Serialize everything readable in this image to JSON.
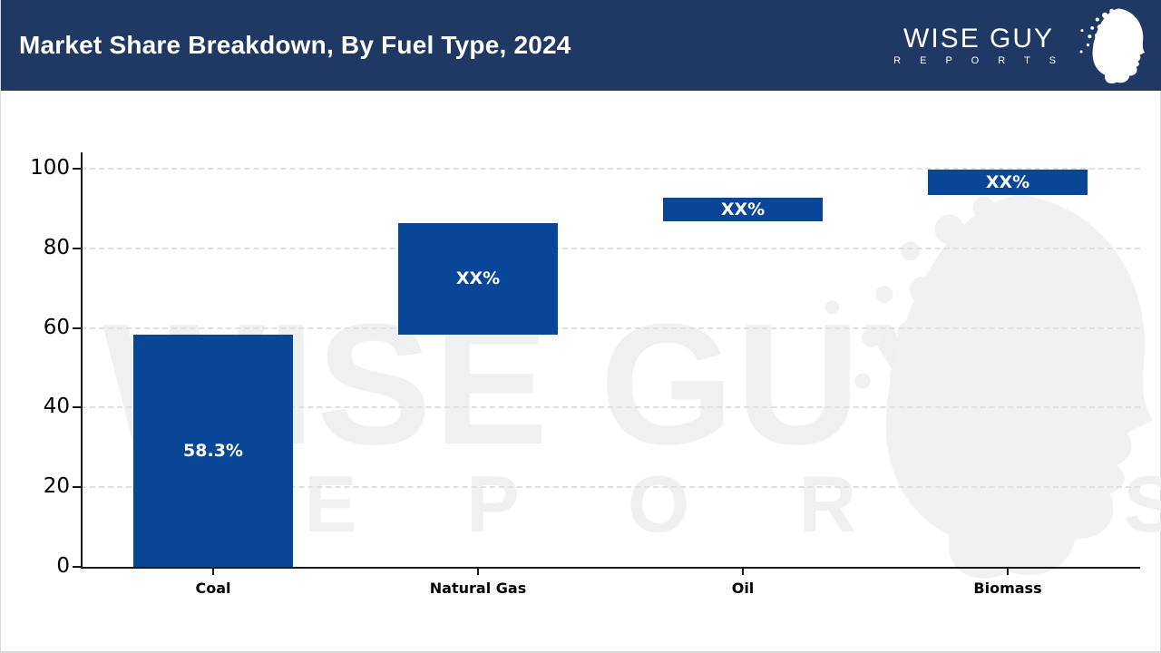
{
  "header": {
    "title": "Market Share Breakdown, By Fuel Type, 2024",
    "bg_color": "#1f3864",
    "logo": {
      "line1": "WISE GUY",
      "line2": "R E P O R T S"
    }
  },
  "watermark": {
    "line1": "WISE GUY",
    "line2": "R E P O R T S"
  },
  "chart_data": {
    "type": "bar",
    "subtype": "floating-segment-waterfall",
    "title": "Market Share Breakdown, By Fuel Type, 2024",
    "categories": [
      "Coal",
      "Natural Gas",
      "Oil",
      "Biomass"
    ],
    "segments": [
      {
        "category": "Coal",
        "start": 0,
        "end": 58.3,
        "size": 58.3,
        "label": "58.3%"
      },
      {
        "category": "Natural Gas",
        "start": 58.3,
        "end": 86.4,
        "size": 28.1,
        "label": "XX%"
      },
      {
        "category": "Oil",
        "start": 86.7,
        "end": 92.7,
        "size": 6.0,
        "label": "XX%"
      },
      {
        "category": "Biomass",
        "start": 93.4,
        "end": 99.7,
        "size": 6.3,
        "label": "XX%"
      }
    ],
    "xlabel": "",
    "ylabel": "",
    "ylim": [
      0,
      100
    ],
    "yticks": [
      0,
      20,
      40,
      60,
      80,
      100
    ],
    "grid": "horizontal-dashed",
    "legend": "none",
    "bar_color": "#0a4697",
    "bar_label_color": "#ffffff",
    "axis_color": "#1a1a1a"
  }
}
